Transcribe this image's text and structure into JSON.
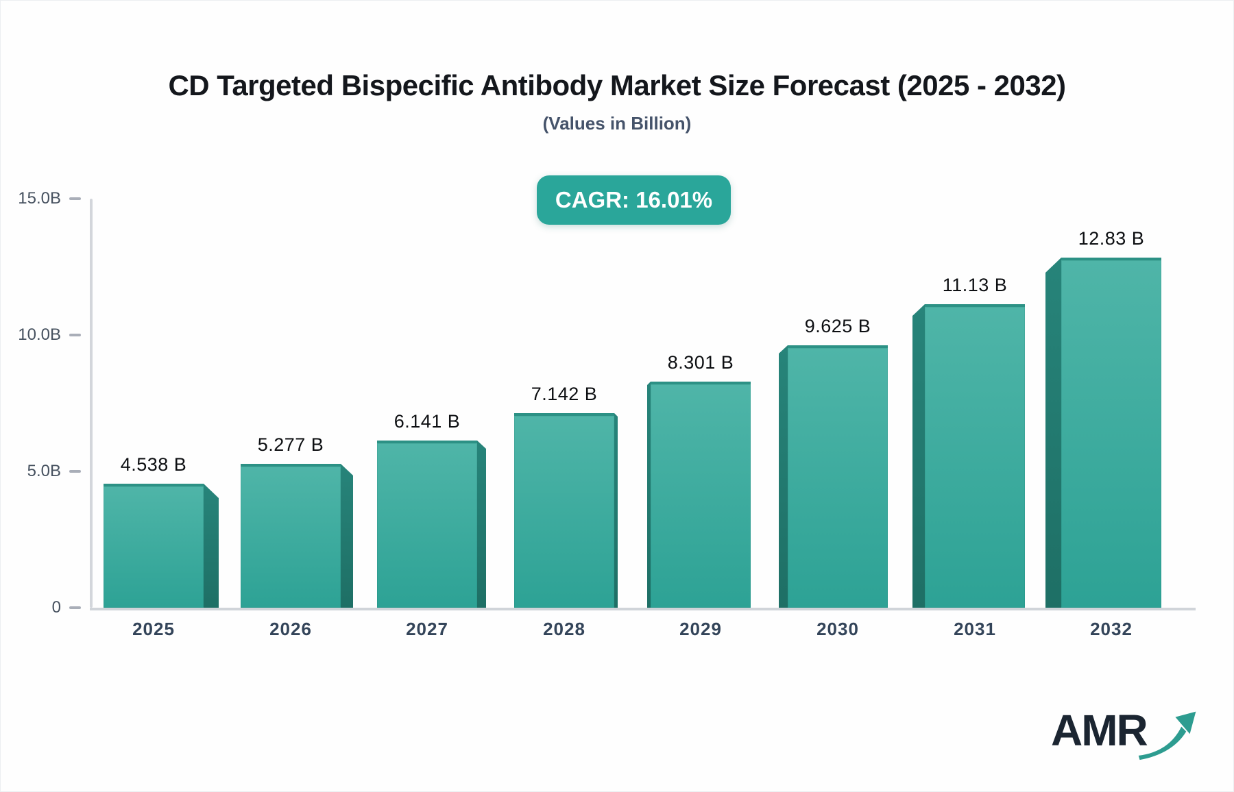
{
  "header": {
    "title": "CD Targeted Bispecific Antibody Market Size Forecast (2025 - 2032)",
    "subtitle": "(Values in Billion)"
  },
  "badge": {
    "label": "CAGR: 16.01%",
    "background": "#2aa69a",
    "text_color": "#ffffff"
  },
  "chart_data": {
    "type": "bar",
    "title": "CD Targeted Bispecific Antibody Market Size Forecast (2025 - 2032)",
    "subtitle": "(Values in Billion)",
    "cagr": "16.01%",
    "categories": [
      "2025",
      "2026",
      "2027",
      "2028",
      "2029",
      "2030",
      "2031",
      "2032"
    ],
    "values": [
      4.538,
      5.277,
      6.141,
      7.142,
      8.301,
      9.625,
      11.13,
      12.83
    ],
    "value_labels": [
      "4.538 B",
      "5.277 B",
      "6.141 B",
      "7.142 B",
      "8.301 B",
      "9.625 B",
      "11.13 B",
      "12.83 B"
    ],
    "y_ticks": [
      {
        "label": "15.0B",
        "value": 15
      },
      {
        "label": "10.0B",
        "value": 10
      },
      {
        "label": "5.0B",
        "value": 5
      },
      {
        "label": "0",
        "value": 0
      }
    ],
    "ylim": [
      0,
      15
    ],
    "xlabel": "",
    "ylabel": "",
    "grid": false,
    "legend": false,
    "bar_colors": {
      "face_top": "#4fb5a8",
      "face_bottom": "#2da295",
      "top_strip": "#2c9185",
      "side_top": "#27847a",
      "side_bottom": "#1e6f65"
    }
  },
  "logo": {
    "text": "AMR",
    "text_color": "#1b2531",
    "arrow_color": "#2d9c90"
  }
}
